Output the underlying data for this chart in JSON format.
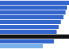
{
  "values": [
    100,
    97,
    95,
    92,
    88,
    85,
    82,
    100,
    78,
    62
  ],
  "bar_colors": [
    "#3366cc",
    "#3366cc",
    "#3366cc",
    "#3366cc",
    "#3366cc",
    "#3366cc",
    "#3366cc",
    "#111111",
    "#3366cc",
    "#7ab0e8"
  ],
  "background_color": "#ffffff",
  "xlim": [
    0,
    100
  ],
  "bar_height": 0.82,
  "figsize": [
    1.0,
    0.71
  ],
  "dpi": 100
}
